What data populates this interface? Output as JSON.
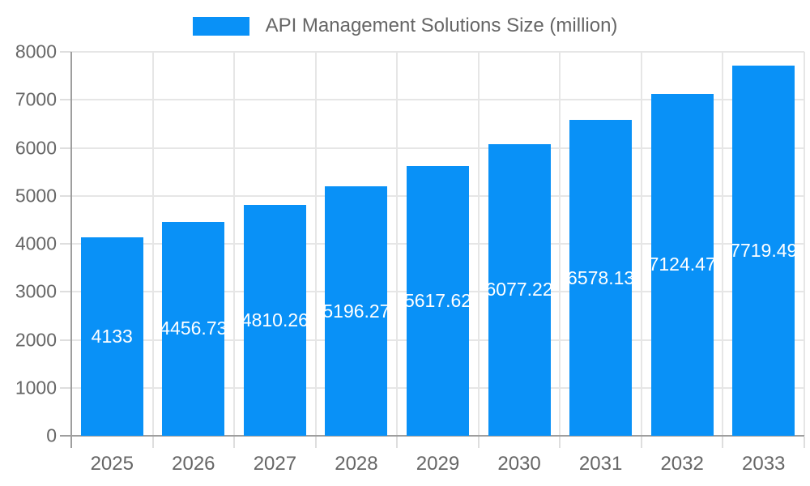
{
  "legend": {
    "label": "API Management Solutions Size (million)"
  },
  "chart_data": {
    "type": "bar",
    "title": "",
    "xlabel": "",
    "ylabel": "",
    "categories": [
      "2025",
      "2026",
      "2027",
      "2028",
      "2029",
      "2030",
      "2031",
      "2032",
      "2033"
    ],
    "series": [
      {
        "name": "API Management Solutions Size (million)",
        "values": [
          4133,
          4456.73,
          4810.26,
          5196.27,
          5617.62,
          6077.22,
          6578.13,
          7124.47,
          7719.49
        ]
      }
    ],
    "data_labels": [
      "4133",
      "4456.73",
      "4810.26",
      "5196.27",
      "5617.62",
      "6077.22",
      "6578.13",
      "7124.47",
      "7719.49"
    ],
    "ylim": [
      0,
      8000
    ],
    "ytick_step": 1000,
    "ytick_labels": [
      "0",
      "1000",
      "2000",
      "3000",
      "4000",
      "5000",
      "6000",
      "7000",
      "8000"
    ],
    "grid": true,
    "legend_position": "top",
    "colors": {
      "bar": "#0991f7",
      "bar_label_text": "#ffffff",
      "grid": "#e6e6e6",
      "axis": "#9e9e9e",
      "tick_text": "#666666"
    }
  }
}
